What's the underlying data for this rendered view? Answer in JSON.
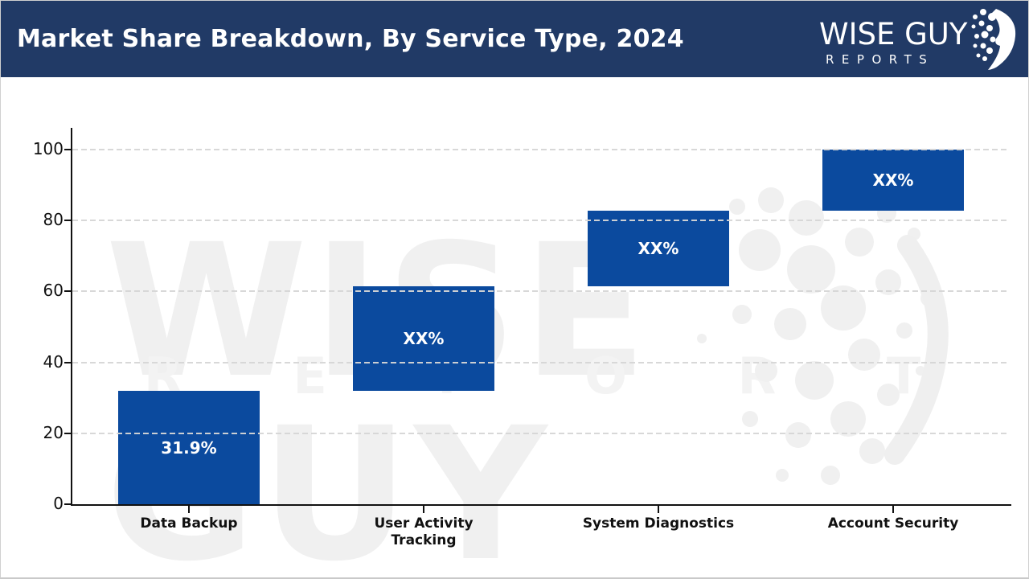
{
  "header": {
    "title": "Market Share Breakdown, By Service Type, 2024",
    "logo": {
      "line1": "WISE GUY",
      "line2": "REPORTS"
    }
  },
  "watermark": {
    "line1": "WISE GUY",
    "line2": "R E P O R T S"
  },
  "chart_data": {
    "type": "bar",
    "subtype": "waterfall",
    "title": "Market Share Breakdown, By Service Type, 2024",
    "categories": [
      "Data Backup",
      "User Activity\nTracking",
      "System Diagnostics",
      "Account Security"
    ],
    "segments": [
      {
        "category": "Data Backup",
        "start": 0,
        "end": 31.9,
        "label": "31.9%"
      },
      {
        "category": "User Activity Tracking",
        "start": 31.9,
        "end": 61.5,
        "label": "XX%"
      },
      {
        "category": "System Diagnostics",
        "start": 61.5,
        "end": 82.8,
        "label": "XX%"
      },
      {
        "category": "Account Security",
        "start": 82.8,
        "end": 100,
        "label": "XX%"
      }
    ],
    "ylim": [
      0,
      100
    ],
    "yticks": [
      0,
      20,
      40,
      60,
      80,
      100
    ],
    "grid": "horizontal-dashed",
    "legend": "none",
    "bar_color": "#0b4a9e",
    "bar_label_color": "#ffffff",
    "axis_color": "#111111",
    "header_color": "#213a66",
    "gridline_color": "#d6d6d6"
  }
}
